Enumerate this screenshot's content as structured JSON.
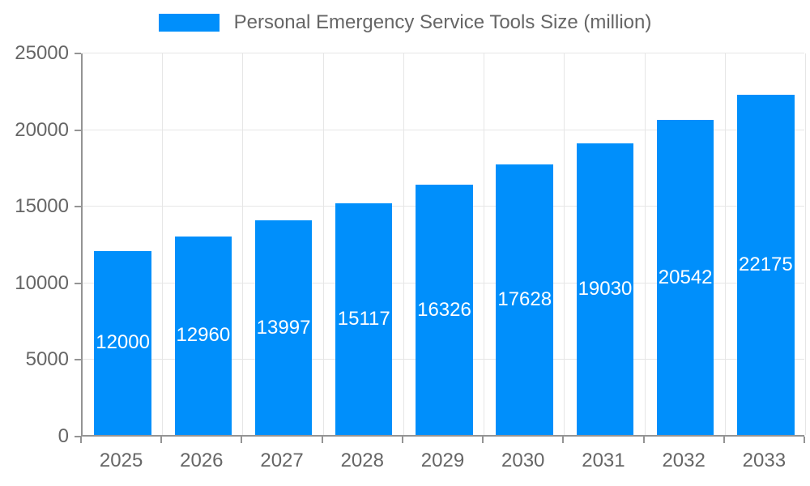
{
  "legend": {
    "label": "Personal Emergency Service Tools Size (million)"
  },
  "chart_data": {
    "type": "bar",
    "title": "Personal Emergency Service Tools Size (million)",
    "categories": [
      "2025",
      "2026",
      "2027",
      "2028",
      "2029",
      "2030",
      "2031",
      "2032",
      "2033"
    ],
    "values": [
      12000,
      12960,
      13997,
      15117,
      16326,
      17628,
      19030,
      20542,
      22175
    ],
    "series": [
      {
        "name": "Personal Emergency Service Tools Size (million)",
        "values": [
          12000,
          12960,
          13997,
          15117,
          16326,
          17628,
          19030,
          20542,
          22175
        ]
      }
    ],
    "xlabel": "",
    "ylabel": "",
    "ylim": [
      0,
      25000
    ],
    "yticks": [
      0,
      5000,
      10000,
      15000,
      20000,
      25000
    ],
    "grid": "on",
    "legend_position": "top",
    "data_labels": "centered-in-bar",
    "colors": {
      "bar": "#008FFB",
      "grid": "#e6e6e6",
      "axis": "#949494",
      "tick_label": "#666666",
      "legend_text": "#666666",
      "data_label": "#ffffff",
      "background": "#ffffff"
    }
  }
}
